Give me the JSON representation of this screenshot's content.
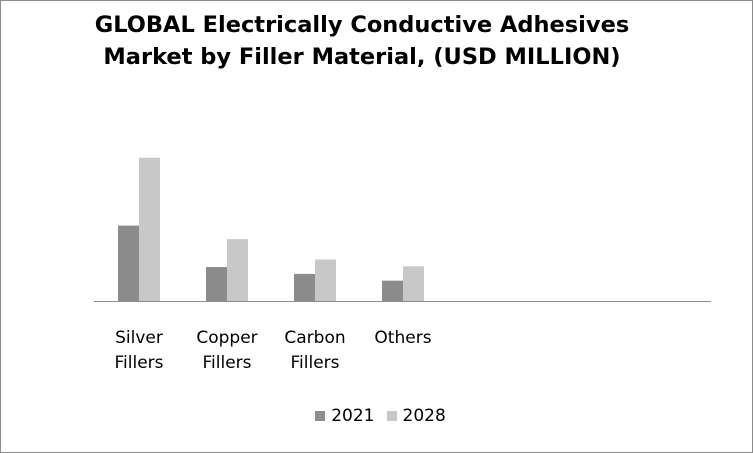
{
  "chart_data": {
    "type": "bar",
    "title_lines": [
      "GLOBAL Electrically Conductive Adhesives",
      "Market by Filler Material, (USD MILLION)"
    ],
    "categories": [
      [
        "Silver",
        "Fillers"
      ],
      [
        "Copper",
        "Fillers"
      ],
      [
        "Carbon",
        "Fillers"
      ],
      [
        "Others"
      ]
    ],
    "series": [
      {
        "name": "2021",
        "color": "#8c8c8c",
        "values": [
          1,
          0.45,
          0.36,
          0.27
        ]
      },
      {
        "name": "2028",
        "color": "#c8c8c8",
        "values": [
          1.9,
          0.82,
          0.55,
          0.46
        ]
      }
    ],
    "ylim": [
      0,
      2.4
    ],
    "grid": false,
    "legend_position": "bottom",
    "axis_color": "#8c8c8c"
  }
}
